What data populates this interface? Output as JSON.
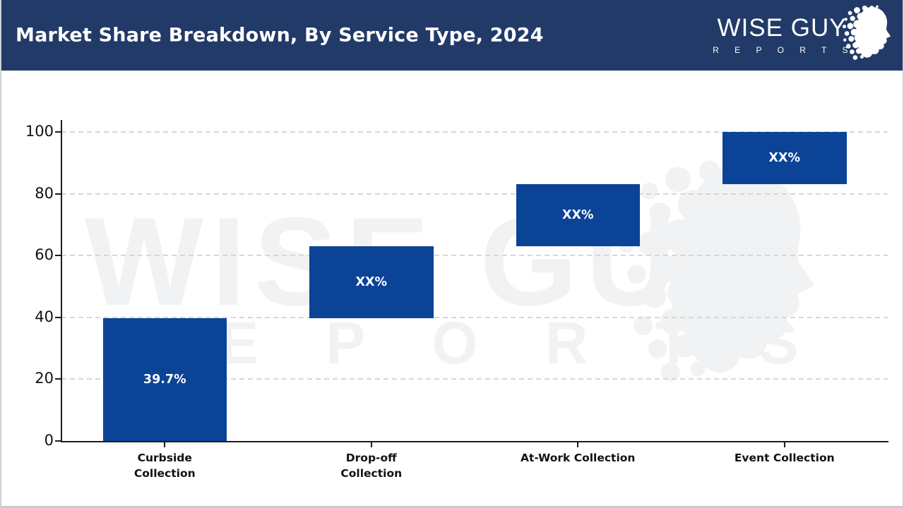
{
  "header": {
    "title": "Market Share Breakdown, By Service Type, 2024",
    "bg_color": "#223a67",
    "logo": {
      "name": "WISE GUY",
      "sub": "R E P O R T S"
    }
  },
  "watermark": {
    "name": "WISE GUY",
    "sub": "R E P O R T S"
  },
  "chart_data": {
    "type": "bar",
    "variant": "floating-segment-waterfall",
    "title": "Market Share Breakdown, By Service Type, 2024",
    "categories": [
      [
        "Curbside",
        "Collection"
      ],
      [
        "Drop-off",
        "Collection"
      ],
      [
        "At-Work Collection"
      ],
      [
        "Event Collection"
      ]
    ],
    "bars": [
      {
        "category": "Curbside Collection",
        "start": 0,
        "end": 39.7,
        "label": "39.7%"
      },
      {
        "category": "Drop-off Collection",
        "start": 39.7,
        "end": 63,
        "label": "XX%"
      },
      {
        "category": "At-Work Collection",
        "start": 63,
        "end": 83,
        "label": "XX%"
      },
      {
        "category": "Event Collection",
        "start": 83,
        "end": 100,
        "label": "XX%"
      }
    ],
    "ylim": [
      0,
      100
    ],
    "yticks": [
      0,
      20,
      40,
      60,
      80,
      100
    ],
    "xlabel": "",
    "ylabel": "",
    "legend": null,
    "grid": {
      "axis": "y",
      "style": "dashed",
      "color": "#d7d7d7"
    },
    "bar_color": "#0b4397",
    "bar_label_color": "#ffffff",
    "axis_color": "#1c1c1c"
  }
}
